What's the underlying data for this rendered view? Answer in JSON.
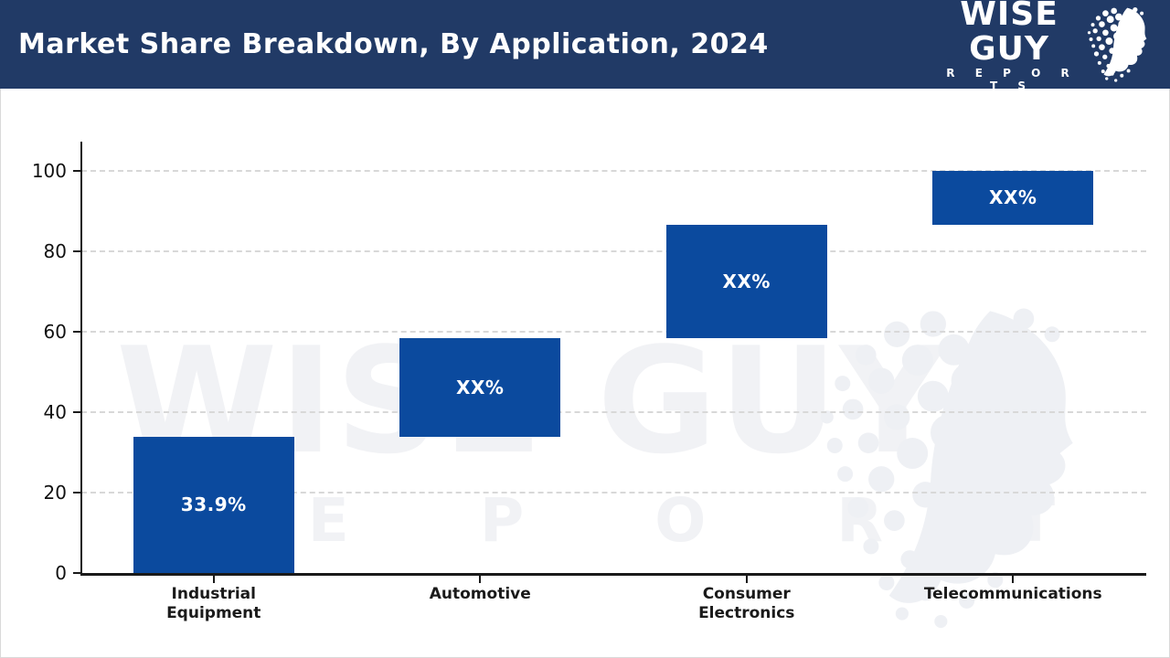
{
  "header": {
    "title": "Market Share Breakdown, By Application, 2024",
    "logo": {
      "line1": "WISE GUY",
      "line2": "R E P O R T S"
    }
  },
  "watermark": {
    "line1": "WISE GUY",
    "line2": "R E P O R T S"
  },
  "colors": {
    "header_bg": "#213a66",
    "bar": "#0b4a9e",
    "bar_label": "#ffffff",
    "grid": "#d8d8d8",
    "axis": "#1a1a1a",
    "watermark": "#f1f2f5"
  },
  "chart_data": {
    "type": "bar",
    "subtype": "waterfall",
    "title": "Market Share Breakdown, By Application, 2024",
    "categories": [
      "Industrial Equipment",
      "Automotive",
      "Consumer Electronics",
      "Telecommunications"
    ],
    "categories_lines": [
      [
        "Industrial",
        "Equipment"
      ],
      [
        "Automotive"
      ],
      [
        "Consumer",
        "Electronics"
      ],
      [
        "Telecommunications"
      ]
    ],
    "segments": [
      {
        "category": "Industrial Equipment",
        "start": 0,
        "end": 33.9,
        "label": "33.9%"
      },
      {
        "category": "Automotive",
        "start": 33.9,
        "end": 58.3,
        "label": "XX%"
      },
      {
        "category": "Consumer Electronics",
        "start": 58.3,
        "end": 86.7,
        "label": "XX%"
      },
      {
        "category": "Telecommunications",
        "start": 86.7,
        "end": 100,
        "label": "XX%"
      }
    ],
    "yticks": [
      0,
      20,
      40,
      60,
      80,
      100
    ],
    "ylim": [
      0,
      107
    ],
    "xlabel": "",
    "ylabel": "",
    "grid": "horizontal-dashed",
    "legend": "none"
  }
}
